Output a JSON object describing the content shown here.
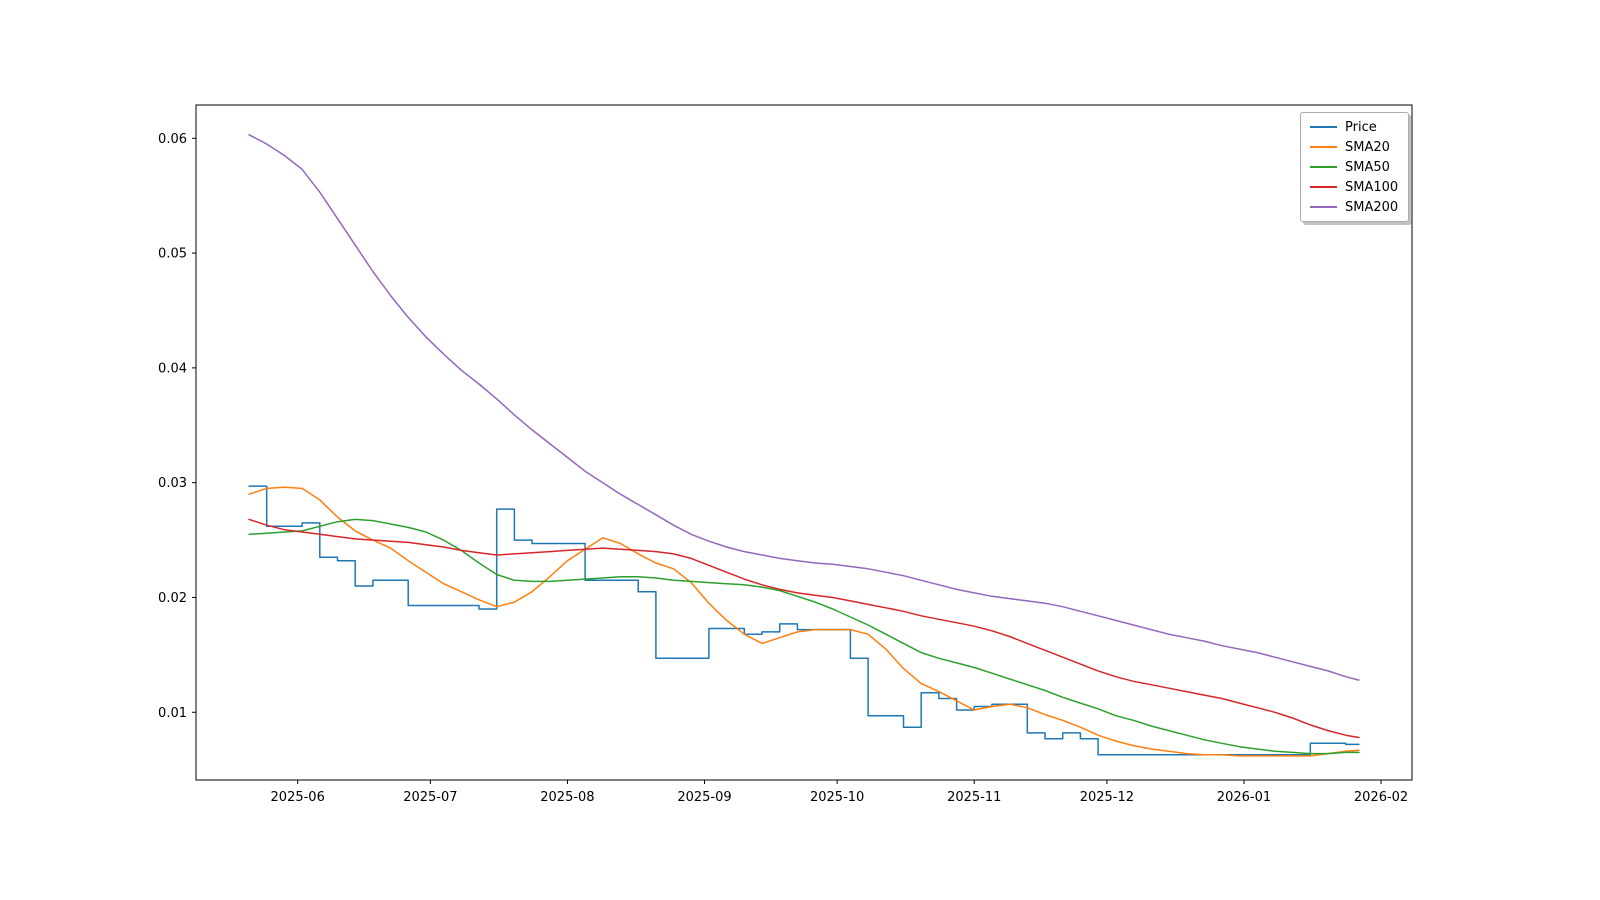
{
  "figure": {
    "background": "#ffffff",
    "frame_color": "#000000",
    "tick_label_color": "#000000"
  },
  "chart_data": {
    "type": "line",
    "title": "",
    "xlabel": "",
    "ylabel": "",
    "grid": false,
    "legend_position": "upper right",
    "xlim": [
      "2025-05-09",
      "2026-02-08"
    ],
    "ylim": [
      0.0041,
      0.0629
    ],
    "x_ticks": [
      {
        "label": "2025-06",
        "date": "2025-06-01"
      },
      {
        "label": "2025-07",
        "date": "2025-07-01"
      },
      {
        "label": "2025-08",
        "date": "2025-08-01"
      },
      {
        "label": "2025-09",
        "date": "2025-09-01"
      },
      {
        "label": "2025-10",
        "date": "2025-10-01"
      },
      {
        "label": "2025-11",
        "date": "2025-11-01"
      },
      {
        "label": "2025-12",
        "date": "2025-12-01"
      },
      {
        "label": "2026-01",
        "date": "2026-01-01"
      },
      {
        "label": "2026-02",
        "date": "2026-02-01"
      }
    ],
    "y_ticks": [
      {
        "label": "0.01",
        "value": 0.01
      },
      {
        "label": "0.02",
        "value": 0.02
      },
      {
        "label": "0.03",
        "value": 0.03
      },
      {
        "label": "0.04",
        "value": 0.04
      },
      {
        "label": "0.05",
        "value": 0.05
      },
      {
        "label": "0.06",
        "value": 0.06
      }
    ],
    "x": [
      "2025-05-21",
      "2025-05-25",
      "2025-05-29",
      "2025-06-02",
      "2025-06-06",
      "2025-06-10",
      "2025-06-14",
      "2025-06-18",
      "2025-06-22",
      "2025-06-26",
      "2025-06-30",
      "2025-07-04",
      "2025-07-08",
      "2025-07-12",
      "2025-07-16",
      "2025-07-20",
      "2025-07-24",
      "2025-07-28",
      "2025-08-01",
      "2025-08-05",
      "2025-08-09",
      "2025-08-13",
      "2025-08-17",
      "2025-08-21",
      "2025-08-25",
      "2025-08-29",
      "2025-09-02",
      "2025-09-06",
      "2025-09-10",
      "2025-09-14",
      "2025-09-18",
      "2025-09-22",
      "2025-09-26",
      "2025-09-30",
      "2025-10-04",
      "2025-10-08",
      "2025-10-12",
      "2025-10-16",
      "2025-10-20",
      "2025-10-24",
      "2025-10-28",
      "2025-11-01",
      "2025-11-05",
      "2025-11-09",
      "2025-11-13",
      "2025-11-17",
      "2025-11-21",
      "2025-11-25",
      "2025-11-29",
      "2025-12-03",
      "2025-12-07",
      "2025-12-11",
      "2025-12-15",
      "2025-12-19",
      "2025-12-23",
      "2025-12-27",
      "2025-12-31",
      "2026-01-04",
      "2026-01-08",
      "2026-01-12",
      "2026-01-16",
      "2026-01-20",
      "2026-01-24",
      "2026-01-27"
    ],
    "series": [
      {
        "name": "Price",
        "color": "#1f77b4",
        "interpolation": "step",
        "values": [
          0.0297,
          0.0262,
          0.0262,
          0.0265,
          0.0235,
          0.0232,
          0.021,
          0.0215,
          0.0215,
          0.0193,
          0.0193,
          0.0193,
          0.0193,
          0.019,
          0.0277,
          0.025,
          0.0247,
          0.0247,
          0.0247,
          0.0215,
          0.0215,
          0.0215,
          0.0205,
          0.0147,
          0.0147,
          0.0147,
          0.0173,
          0.0173,
          0.0168,
          0.017,
          0.0177,
          0.0172,
          0.0172,
          0.0172,
          0.0147,
          0.0097,
          0.0097,
          0.0087,
          0.0117,
          0.0112,
          0.0102,
          0.0105,
          0.0107,
          0.0107,
          0.0082,
          0.0077,
          0.0082,
          0.0077,
          0.0063,
          0.0063,
          0.0063,
          0.0063,
          0.0063,
          0.0063,
          0.0063,
          0.0063,
          0.0063,
          0.0063,
          0.0063,
          0.0063,
          0.0073,
          0.0073,
          0.0072,
          0.0072
        ]
      },
      {
        "name": "SMA20",
        "color": "#ff7f0e",
        "interpolation": "linear",
        "values": [
          0.029,
          0.0295,
          0.0296,
          0.0295,
          0.0285,
          0.027,
          0.0258,
          0.025,
          0.0243,
          0.0232,
          0.0222,
          0.0212,
          0.0205,
          0.0198,
          0.0192,
          0.0196,
          0.0205,
          0.0218,
          0.0232,
          0.0242,
          0.0252,
          0.0247,
          0.0238,
          0.023,
          0.0225,
          0.0213,
          0.0195,
          0.018,
          0.0168,
          0.016,
          0.0165,
          0.017,
          0.0172,
          0.0172,
          0.0172,
          0.0168,
          0.0155,
          0.0138,
          0.0125,
          0.0118,
          0.011,
          0.0102,
          0.0105,
          0.0107,
          0.0104,
          0.0098,
          0.0093,
          0.0087,
          0.008,
          0.0075,
          0.0071,
          0.0068,
          0.0066,
          0.0064,
          0.0063,
          0.0063,
          0.0062,
          0.0062,
          0.0062,
          0.0062,
          0.0062,
          0.0064,
          0.0066,
          0.0067
        ]
      },
      {
        "name": "SMA50",
        "color": "#2ca02c",
        "interpolation": "linear",
        "values": [
          0.0255,
          0.0256,
          0.0257,
          0.0258,
          0.0262,
          0.0266,
          0.0268,
          0.0267,
          0.0264,
          0.0261,
          0.0257,
          0.025,
          0.0241,
          0.023,
          0.022,
          0.0215,
          0.0214,
          0.0214,
          0.0215,
          0.0216,
          0.0217,
          0.0218,
          0.0218,
          0.0217,
          0.0215,
          0.0214,
          0.0213,
          0.0212,
          0.0211,
          0.0209,
          0.0206,
          0.0201,
          0.0196,
          0.019,
          0.0183,
          0.0176,
          0.0168,
          0.016,
          0.0152,
          0.0147,
          0.0143,
          0.0139,
          0.0134,
          0.0129,
          0.0124,
          0.0119,
          0.0113,
          0.0108,
          0.0103,
          0.0097,
          0.0093,
          0.0088,
          0.0084,
          0.008,
          0.0076,
          0.0073,
          0.007,
          0.0068,
          0.0066,
          0.0065,
          0.0064,
          0.0064,
          0.0065,
          0.0065
        ]
      },
      {
        "name": "SMA100",
        "color": "#d62728",
        "interpolation": "linear",
        "values": [
          0.0268,
          0.0263,
          0.0259,
          0.0257,
          0.0255,
          0.0253,
          0.0251,
          0.025,
          0.0249,
          0.0248,
          0.0246,
          0.0244,
          0.0241,
          0.0239,
          0.0237,
          0.0238,
          0.0239,
          0.024,
          0.0241,
          0.0242,
          0.0243,
          0.0242,
          0.0241,
          0.024,
          0.0238,
          0.0234,
          0.0228,
          0.0222,
          0.0216,
          0.0211,
          0.0207,
          0.0204,
          0.0202,
          0.02,
          0.0197,
          0.0194,
          0.0191,
          0.0188,
          0.0184,
          0.0181,
          0.0178,
          0.0175,
          0.0171,
          0.0166,
          0.016,
          0.0154,
          0.0148,
          0.0142,
          0.0136,
          0.0131,
          0.0127,
          0.0124,
          0.0121,
          0.0118,
          0.0115,
          0.0112,
          0.0108,
          0.0104,
          0.01,
          0.0095,
          0.0089,
          0.0084,
          0.008,
          0.0078
        ]
      },
      {
        "name": "SMA200",
        "color": "#9467bd",
        "interpolation": "linear",
        "values": [
          0.0603,
          0.0595,
          0.0585,
          0.0573,
          0.0553,
          0.053,
          0.0507,
          0.0484,
          0.0463,
          0.0444,
          0.0427,
          0.0412,
          0.0398,
          0.0386,
          0.0373,
          0.0359,
          0.0346,
          0.0334,
          0.0322,
          0.031,
          0.03,
          0.029,
          0.0281,
          0.0272,
          0.0263,
          0.0255,
          0.0249,
          0.0244,
          0.024,
          0.0237,
          0.0234,
          0.0232,
          0.023,
          0.0229,
          0.0227,
          0.0225,
          0.0222,
          0.0219,
          0.0215,
          0.0211,
          0.0207,
          0.0204,
          0.0201,
          0.0199,
          0.0197,
          0.0195,
          0.0192,
          0.0188,
          0.0184,
          0.018,
          0.0176,
          0.0172,
          0.0168,
          0.0165,
          0.0162,
          0.0158,
          0.0155,
          0.0152,
          0.0148,
          0.0144,
          0.014,
          0.0136,
          0.0131,
          0.0128
        ]
      }
    ]
  }
}
